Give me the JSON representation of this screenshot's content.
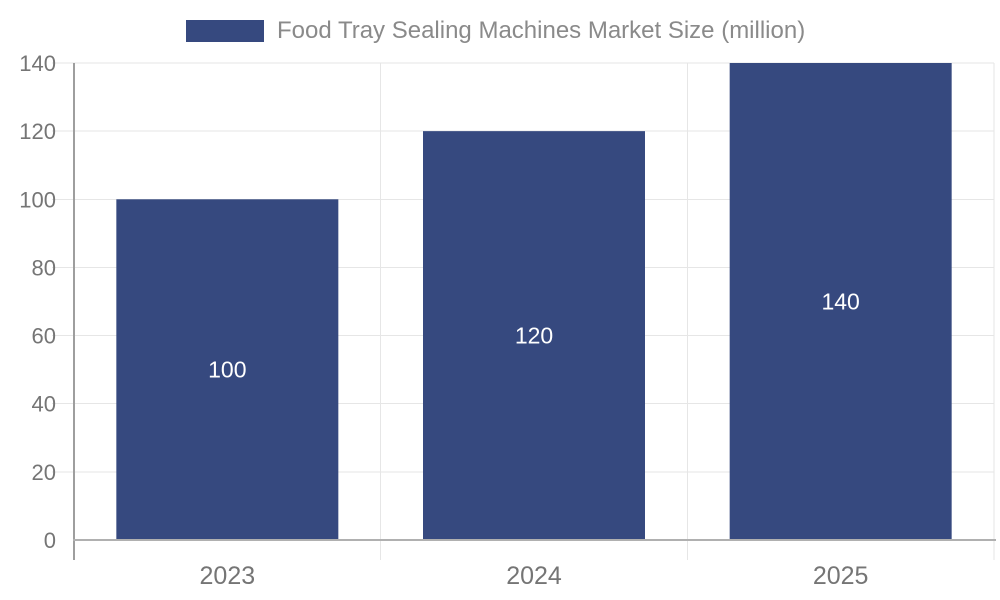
{
  "chart_data": {
    "type": "bar",
    "title": "Food Tray Sealing Machines Market Size (million)",
    "categories": [
      "2023",
      "2024",
      "2025"
    ],
    "values": [
      100,
      120,
      140
    ],
    "series": [
      {
        "name": "Food Tray Sealing Machines Market Size (million)",
        "values": [
          100,
          120,
          140
        ]
      }
    ],
    "xlabel": "",
    "ylabel": "",
    "ylim": [
      0,
      140
    ],
    "ytick_step": 20,
    "ytick_labels": [
      "0",
      "20",
      "40",
      "60",
      "80",
      "100",
      "120",
      "140"
    ],
    "grid": "on",
    "legend_position": "top",
    "value_label_position": "inside-center",
    "colors": {
      "bar": "#36497f",
      "value_label": "#ffffff",
      "tick_label": "#757575",
      "legend_text": "#8a8a8a",
      "grid": "#e6e6e6",
      "axis_y": "#9e9e9e",
      "axis_x": "#b0b0b0"
    }
  }
}
